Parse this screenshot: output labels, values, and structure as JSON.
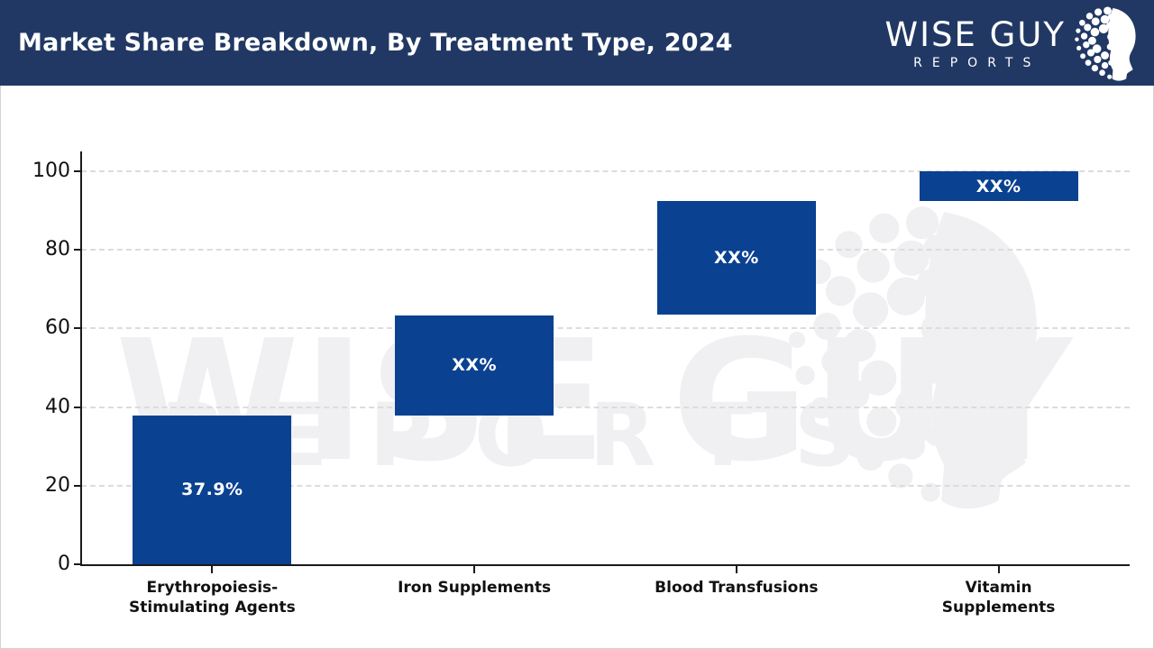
{
  "header": {
    "title": "Market Share Breakdown, By Treatment Type, 2024",
    "logo": {
      "wordmark": "WISE GUY",
      "sub": "REPORTS"
    }
  },
  "watermark": {
    "wordmark": "WISE GUY",
    "sub": "REPORTS"
  },
  "colors": {
    "header_bg": "#213864",
    "bar": "#0A4191",
    "axis": "#1A1A1A",
    "grid": "#DCDCDC",
    "tick_label": "#111111",
    "watermark": "#F0F0F3"
  },
  "chart_data": {
    "type": "bar",
    "subtype": "floating-waterfall",
    "title": "Market Share Breakdown, By Treatment Type, 2024",
    "xlabel": "",
    "ylabel": "",
    "ylim": [
      0,
      105
    ],
    "yticks": [
      0,
      20,
      40,
      60,
      80,
      100
    ],
    "grid": "dashed-horizontal",
    "legend": null,
    "categories": [
      [
        "Erythropoiesis-",
        "Stimulating Agents"
      ],
      [
        "Iron Supplements"
      ],
      [
        "Blood Transfusions"
      ],
      [
        "Vitamin",
        "Supplements"
      ]
    ],
    "segments": [
      {
        "category": "Erythropoiesis-Stimulating Agents",
        "start": 0,
        "end": 37.9,
        "label": "37.9%"
      },
      {
        "category": "Iron Supplements",
        "start": 37.9,
        "end": 63.2,
        "label": "XX%"
      },
      {
        "category": "Blood Transfusions",
        "start": 63.5,
        "end": 92.3,
        "label": "XX%"
      },
      {
        "category": "Vitamin Supplements",
        "start": 92.3,
        "end": 100,
        "label": "XX%"
      }
    ]
  }
}
